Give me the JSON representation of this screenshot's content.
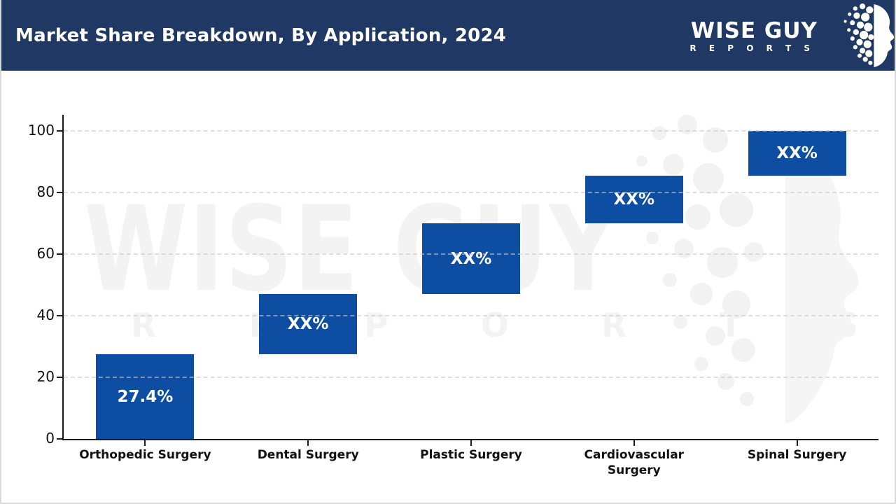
{
  "header": {
    "title": "Market Share Breakdown, By Application, 2024",
    "bg_color": "#1f3864",
    "logo": {
      "line1": "WISE GUY",
      "line2": "R E P O R T S"
    }
  },
  "watermark": {
    "line1": "WISE GUY",
    "line2": "R E P O R T S"
  },
  "chart_data": {
    "type": "bar",
    "subtype": "waterfall",
    "title": "Market Share Breakdown, By Application, 2024",
    "xlabel": "",
    "ylabel": "",
    "ylim": [
      0,
      100
    ],
    "y_ticks": [
      0,
      20,
      40,
      60,
      80,
      100
    ],
    "grid": true,
    "grid_style": "dashed",
    "legend": "none",
    "bar_color": "#0d4da2",
    "label_color": "#ffffff",
    "categories": [
      "Orthopedic Surgery",
      "Dental Surgery",
      "Plastic Surgery",
      "Cardiovascular\nSurgery",
      "Spinal Surgery"
    ],
    "segments": [
      {
        "category": "Orthopedic Surgery",
        "start": 0,
        "end": 27.4,
        "label": "27.4%"
      },
      {
        "category": "Dental Surgery",
        "start": 27.4,
        "end": 47,
        "label": "XX%"
      },
      {
        "category": "Plastic Surgery",
        "start": 47,
        "end": 70,
        "label": "XX%"
      },
      {
        "category": "Cardiovascular Surgery",
        "start": 70,
        "end": 85.5,
        "label": "XX%"
      },
      {
        "category": "Spinal Surgery",
        "start": 85.5,
        "end": 100,
        "label": "XX%"
      }
    ]
  }
}
